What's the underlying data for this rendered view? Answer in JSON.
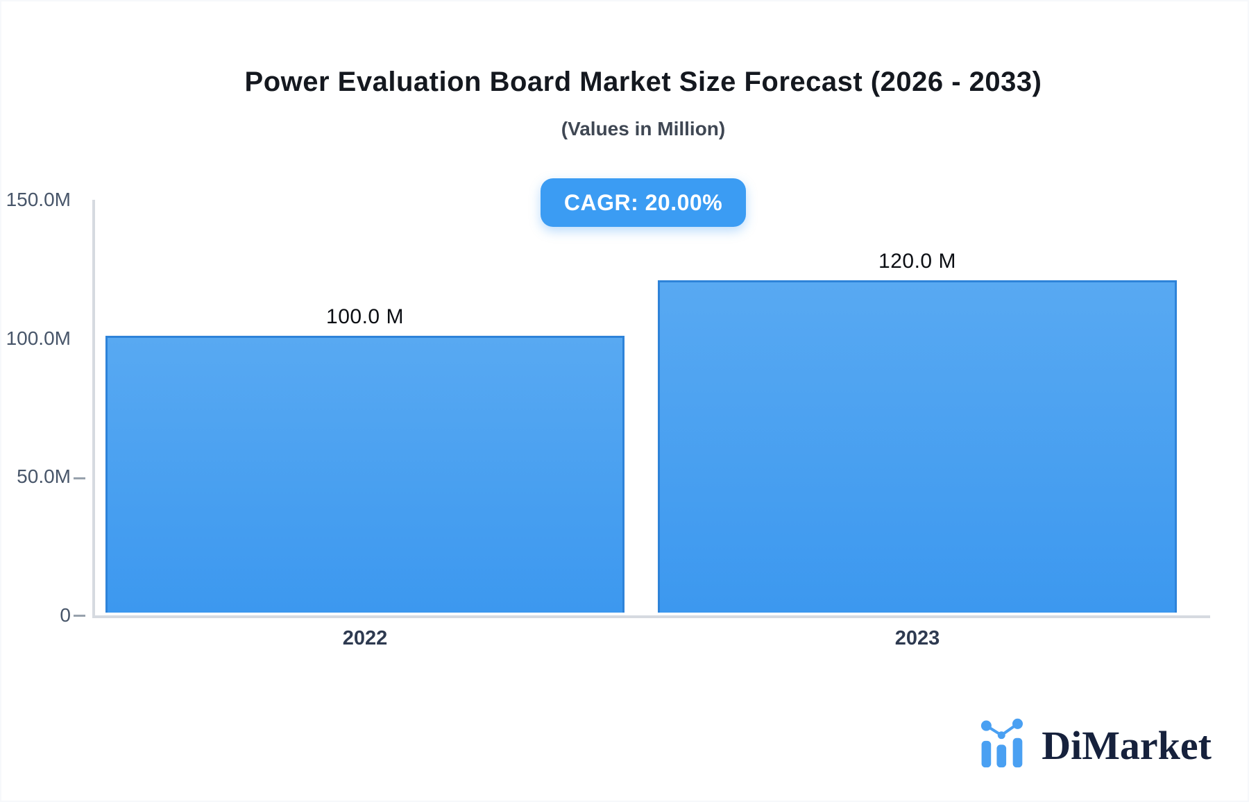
{
  "header": {
    "title": "Power Evaluation Board Market Size Forecast (2026 - 2033)",
    "subtitle": "(Values in Million)",
    "cagr_badge": "CAGR: 20.00%"
  },
  "chart_data": {
    "type": "bar",
    "title": "Power Evaluation Board Market Size Forecast (2026 - 2033)",
    "subtitle": "(Values in Million)",
    "categories": [
      "2022",
      "2023"
    ],
    "values": [
      100.0,
      120.0
    ],
    "value_labels": [
      "100.0 M",
      "120.0 M"
    ],
    "unit": "Million",
    "cagr_percent": "20.00%",
    "xlabel": "",
    "ylabel": "",
    "ylim": [
      0,
      150
    ],
    "yticks": [
      {
        "value": 150,
        "label": "150.0M"
      },
      {
        "value": 100,
        "label": "100.0M"
      },
      {
        "value": 50,
        "label": "50.0M"
      },
      {
        "value": 0,
        "label": "0"
      }
    ],
    "grid": false,
    "legend": "none",
    "colors": {
      "bar_fill_top": "#58a9f2",
      "bar_fill_bottom": "#3c98ef",
      "bar_border": "#2e83d9",
      "badge_bg": "#3b9cf3",
      "axis_line": "#d6dae0",
      "logo_blue": "#4aa0f2",
      "logo_navy": "#16213c"
    }
  },
  "branding": {
    "logo_text": "DiMarket",
    "logo_icon": "mini-bar-chart-icon"
  }
}
